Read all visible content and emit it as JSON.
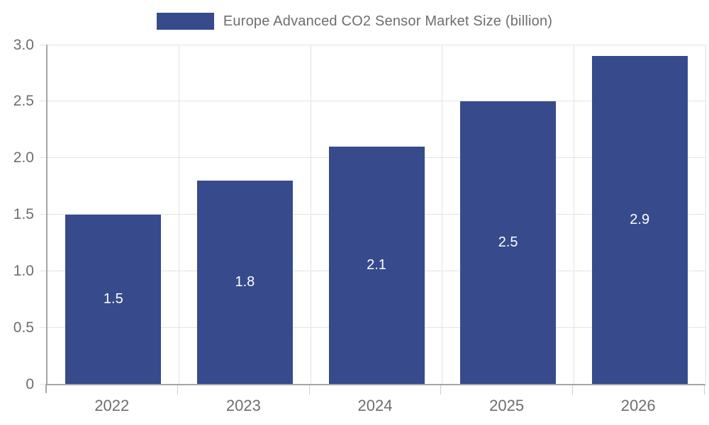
{
  "chart_data": {
    "type": "bar",
    "title": "Europe Advanced CO2 Sensor Market Size (billion)",
    "categories": [
      "2022",
      "2023",
      "2024",
      "2025",
      "2026"
    ],
    "values": [
      1.5,
      1.8,
      2.1,
      2.5,
      2.9
    ],
    "bar_labels": [
      "1.5",
      "1.8",
      "2.1",
      "2.5",
      "2.9"
    ],
    "ylim": [
      0,
      3.0
    ],
    "yticks": [
      0,
      0.5,
      1.0,
      1.5,
      2.0,
      2.5,
      3.0
    ],
    "ytick_labels": [
      "0",
      "0.5",
      "1.0",
      "1.5",
      "2.0",
      "2.5",
      "3.0"
    ],
    "grid": true,
    "legend_position": "top",
    "xlabel": "",
    "ylabel": "",
    "colors": {
      "bar": "#364A8C",
      "grid": "#E3E3E3",
      "axis": "#A6A6A6",
      "xtick": "#CCCCCC",
      "tick_label": "#6E6E6E",
      "bar_label": "#FFFFFF",
      "legend_text": "#6E6E6E",
      "background": "#FFFFFF"
    }
  }
}
